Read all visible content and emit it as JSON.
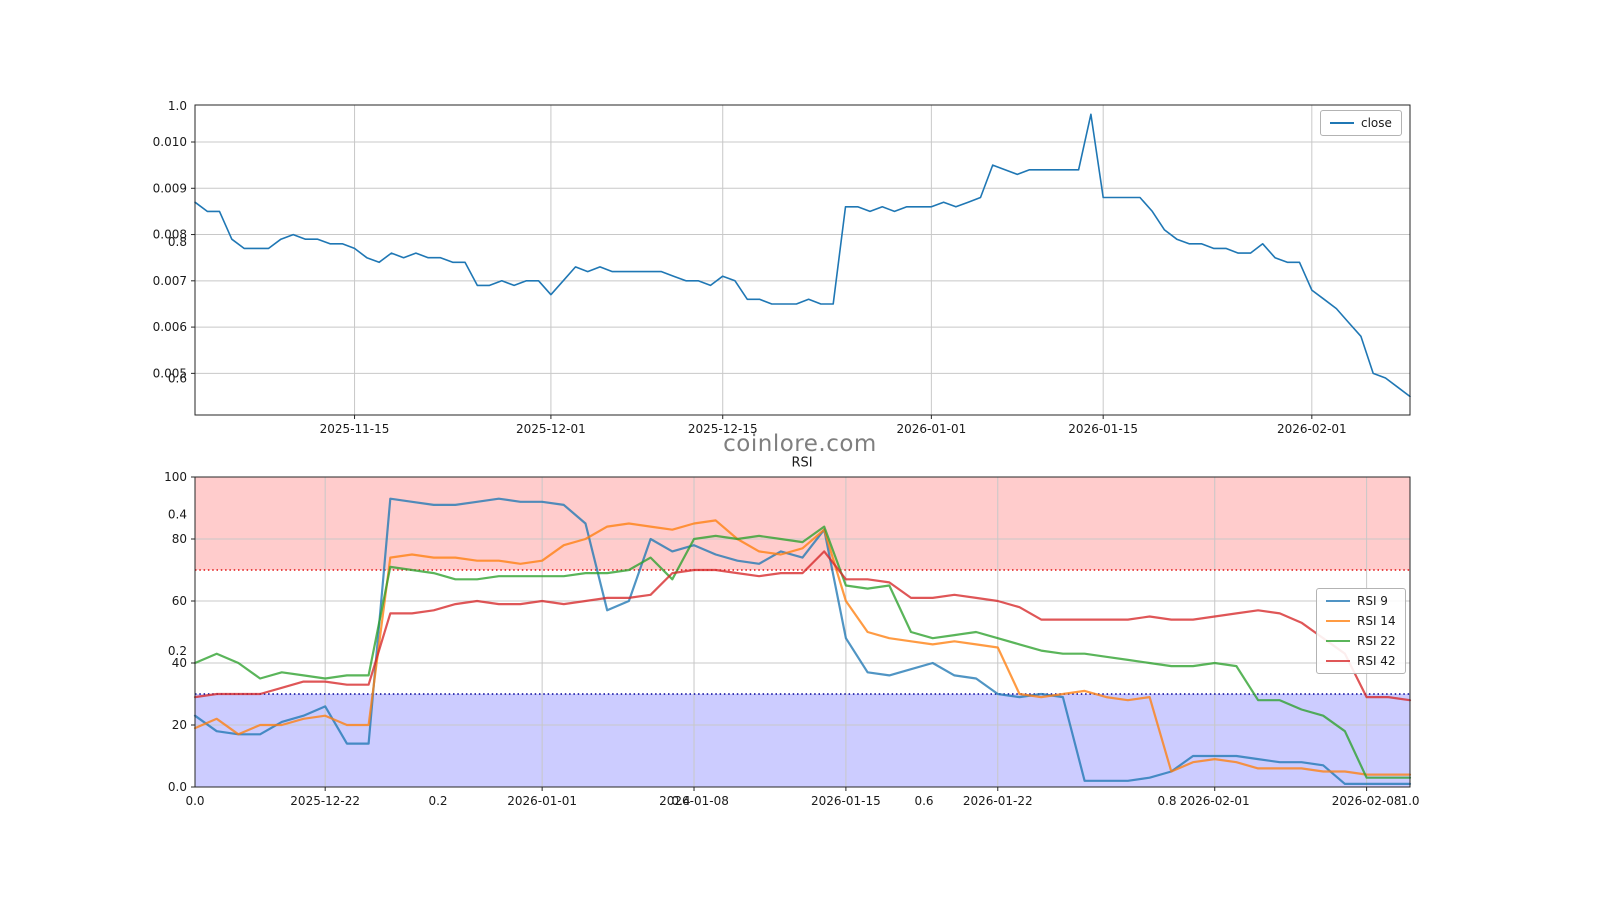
{
  "watermark": "coinlore.com",
  "colors": {
    "background": "#ffffff",
    "grid": "#c8c8c8",
    "axis": "#262626",
    "text": "#1a1a1a",
    "watermark": "#7f7f7f"
  },
  "stray_axis": {
    "x_labels": [
      "0.0",
      "0.2",
      "0.4",
      "0.6",
      "0.8",
      "1.0"
    ],
    "y_labels": [
      "1.0",
      "0.8",
      "0.6",
      "0.4",
      "0.2"
    ]
  },
  "chart_data": [
    {
      "type": "line",
      "name": "price",
      "title": "",
      "x_start_date": "2025-11-02",
      "x_end_date": "2026-02-09",
      "x_frequency": "daily",
      "ylim": [
        0.0041,
        0.0108
      ],
      "grid": true,
      "y_ticks": [
        "0.005",
        "0.006",
        "0.007",
        "0.008",
        "0.009",
        "0.010"
      ],
      "x_ticks": [
        "2025-11-15",
        "2025-12-01",
        "2025-12-15",
        "2026-01-01",
        "2026-01-15",
        "2026-02-01"
      ],
      "legend": {
        "position": "upper-right",
        "entries": [
          {
            "label": "close",
            "color": "#1f77b4"
          }
        ]
      },
      "series": [
        {
          "name": "close",
          "color": "#1f77b4",
          "width": 1.6,
          "values": [
            0.0087,
            0.0085,
            0.0085,
            0.0079,
            0.0077,
            0.0077,
            0.0077,
            0.0079,
            0.008,
            0.0079,
            0.0079,
            0.0078,
            0.0078,
            0.0077,
            0.0075,
            0.0074,
            0.0076,
            0.0075,
            0.0076,
            0.0075,
            0.0075,
            0.0074,
            0.0074,
            0.0069,
            0.0069,
            0.007,
            0.0069,
            0.007,
            0.007,
            0.0067,
            0.007,
            0.0073,
            0.0072,
            0.0073,
            0.0072,
            0.0072,
            0.0072,
            0.0072,
            0.0072,
            0.0071,
            0.007,
            0.007,
            0.0069,
            0.0071,
            0.007,
            0.0066,
            0.0066,
            0.0065,
            0.0065,
            0.0065,
            0.0066,
            0.0065,
            0.0065,
            0.0086,
            0.0086,
            0.0085,
            0.0086,
            0.0085,
            0.0086,
            0.0086,
            0.0086,
            0.0087,
            0.0086,
            0.0087,
            0.0088,
            0.0095,
            0.0094,
            0.0093,
            0.0094,
            0.0094,
            0.0094,
            0.0094,
            0.0094,
            0.0106,
            0.0088,
            0.0088,
            0.0088,
            0.0088,
            0.0085,
            0.0081,
            0.0079,
            0.0078,
            0.0078,
            0.0077,
            0.0077,
            0.0076,
            0.0076,
            0.0078,
            0.0075,
            0.0074,
            0.0074,
            0.0068,
            0.0066,
            0.0064,
            0.0061,
            0.0058,
            0.005,
            0.0049,
            0.0047,
            0.0045
          ]
        }
      ]
    },
    {
      "type": "line",
      "name": "rsi",
      "title": "RSI",
      "x_start_date": "2025-12-16",
      "x_end_date": "2026-02-10",
      "x_frequency": "daily",
      "ylim": [
        0,
        100
      ],
      "grid": true,
      "y_ticks": [
        "0.0",
        "20",
        "40",
        "60",
        "80",
        "100"
      ],
      "x_ticks": [
        "2025-12-22",
        "2026-01-01",
        "2026-01-08",
        "2026-01-15",
        "2026-01-22",
        "2026-02-01",
        "2026-02-08"
      ],
      "bands": [
        {
          "name": "overbought",
          "from": 70,
          "to": 100,
          "color": "#ffcccc"
        },
        {
          "name": "oversold",
          "from": 0,
          "to": 30,
          "color": "#ccccff"
        }
      ],
      "threshold_lines": [
        {
          "name": "overbought-threshold",
          "value": 70,
          "color": "#e01010"
        },
        {
          "name": "oversold-threshold",
          "value": 30,
          "color": "#000099"
        }
      ],
      "legend": {
        "position": "middle-right",
        "entries": [
          {
            "label": "RSI 9",
            "color": "rgba(31,119,180,0.78)"
          },
          {
            "label": "RSI 14",
            "color": "rgba(255,127,14,0.78)"
          },
          {
            "label": "RSI 22",
            "color": "rgba(44,160,44,0.78)"
          },
          {
            "label": "RSI 42",
            "color": "rgba(214,39,40,0.78)"
          }
        ]
      },
      "series": [
        {
          "name": "RSI 9",
          "color": "rgba(31,119,180,0.78)",
          "width": 2.2,
          "values": [
            23,
            18,
            17,
            17,
            21,
            23,
            26,
            14,
            14,
            93,
            92,
            91,
            91,
            92,
            93,
            92,
            92,
            91,
            85,
            57,
            60,
            80,
            76,
            78,
            75,
            73,
            72,
            76,
            74,
            83,
            48,
            37,
            36,
            38,
            40,
            36,
            35,
            30,
            29,
            30,
            29,
            2,
            2,
            2,
            3,
            5,
            10,
            10,
            10,
            9,
            8,
            8,
            7,
            1,
            1,
            1,
            1
          ]
        },
        {
          "name": "RSI 14",
          "color": "rgba(255,127,14,0.78)",
          "width": 2.2,
          "values": [
            19,
            22,
            17,
            20,
            20,
            22,
            23,
            20,
            20,
            74,
            75,
            74,
            74,
            73,
            73,
            72,
            73,
            78,
            80,
            84,
            85,
            84,
            83,
            85,
            86,
            80,
            76,
            75,
            77,
            83,
            60,
            50,
            48,
            47,
            46,
            47,
            46,
            45,
            30,
            29,
            30,
            31,
            29,
            28,
            29,
            5,
            8,
            9,
            8,
            6,
            6,
            6,
            5,
            5,
            4,
            4,
            4
          ]
        },
        {
          "name": "RSI 22",
          "color": "rgba(44,160,44,0.78)",
          "width": 2.2,
          "values": [
            40,
            43,
            40,
            35,
            37,
            36,
            35,
            36,
            36,
            71,
            70,
            69,
            67,
            67,
            68,
            68,
            68,
            68,
            69,
            69,
            70,
            74,
            67,
            80,
            81,
            80,
            81,
            80,
            79,
            84,
            65,
            64,
            65,
            50,
            48,
            49,
            50,
            48,
            46,
            44,
            43,
            43,
            42,
            41,
            40,
            39,
            39,
            40,
            39,
            28,
            28,
            25,
            23,
            18,
            3,
            3,
            3
          ]
        },
        {
          "name": "RSI 42",
          "color": "rgba(214,39,40,0.78)",
          "width": 2.2,
          "values": [
            29,
            30,
            30,
            30,
            32,
            34,
            34,
            33,
            33,
            56,
            56,
            57,
            59,
            60,
            59,
            59,
            60,
            59,
            60,
            61,
            61,
            62,
            69,
            70,
            70,
            69,
            68,
            69,
            69,
            76,
            67,
            67,
            66,
            61,
            61,
            62,
            61,
            60,
            58,
            54,
            54,
            54,
            54,
            54,
            55,
            54,
            54,
            55,
            56,
            57,
            56,
            53,
            48,
            43,
            29,
            29,
            28
          ]
        }
      ]
    }
  ]
}
